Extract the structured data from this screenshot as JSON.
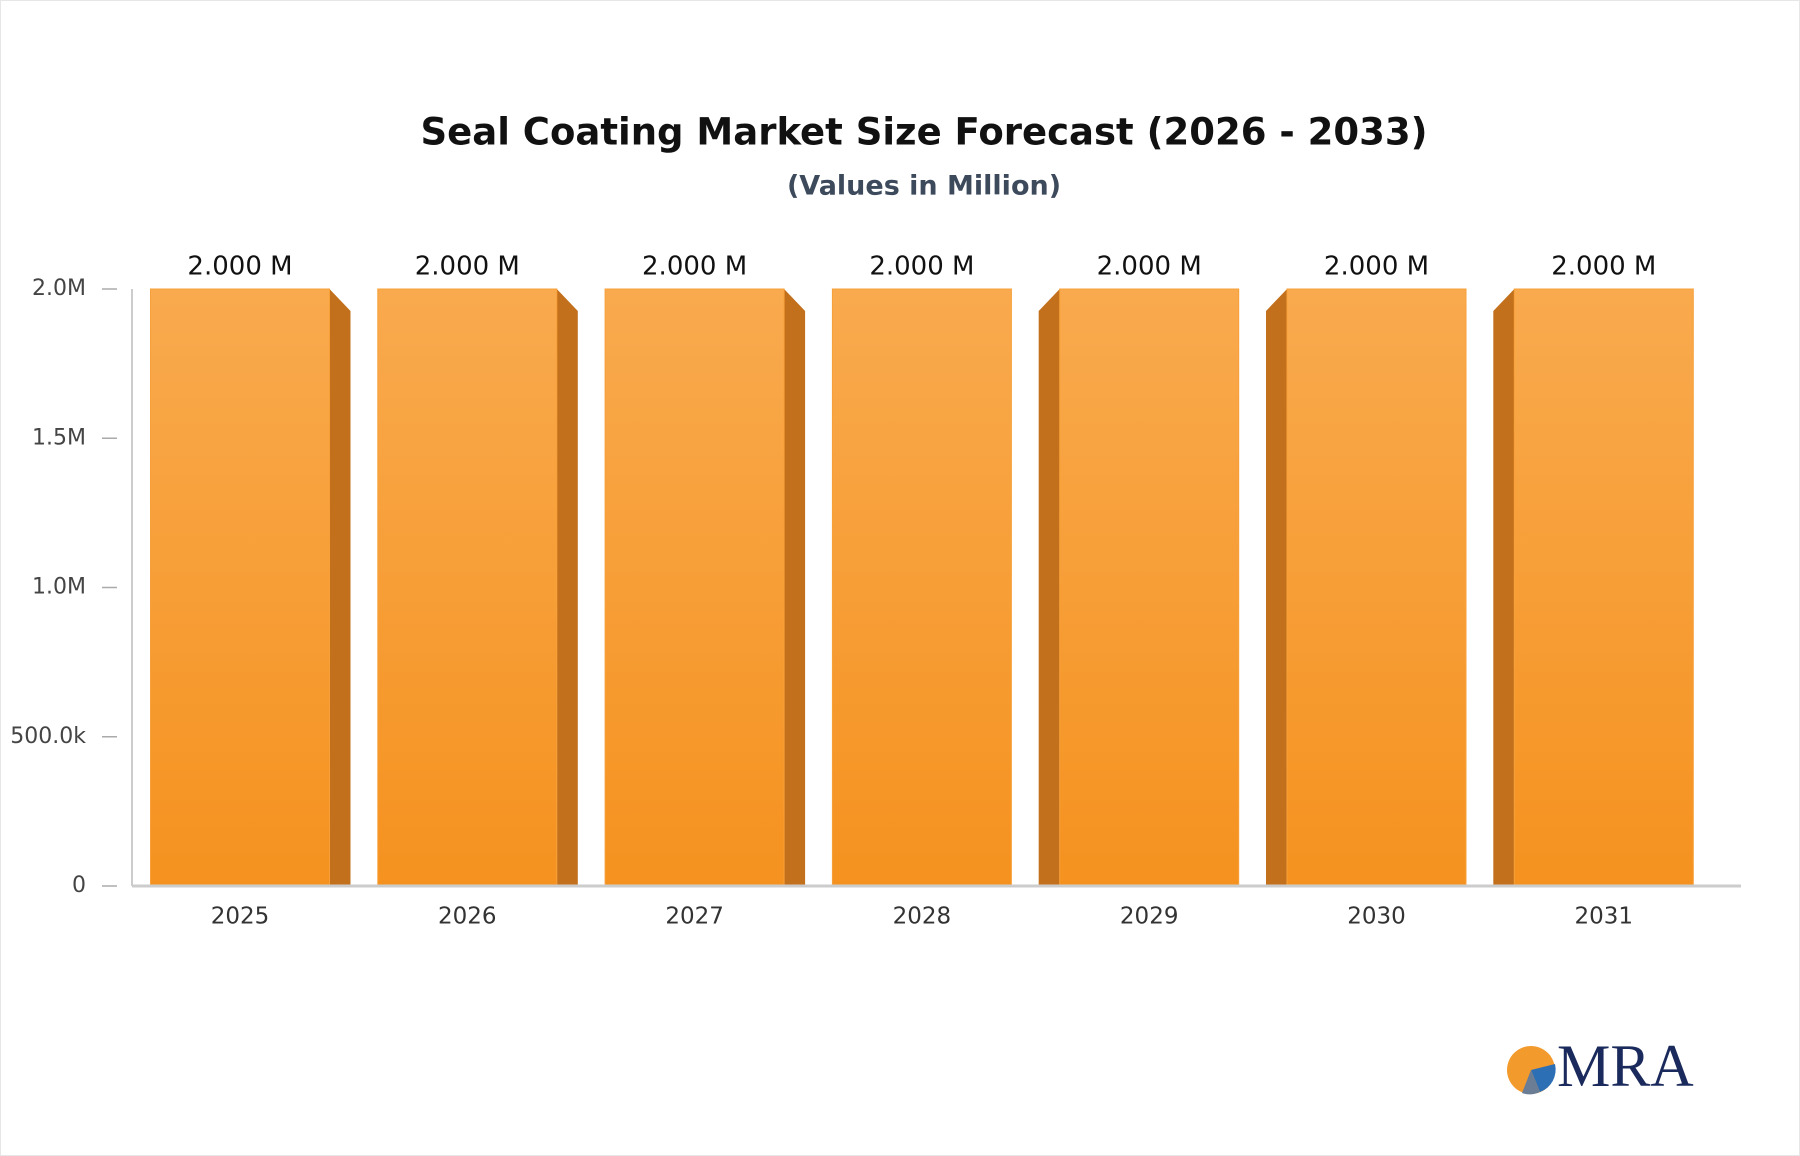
{
  "chart_data": {
    "type": "bar",
    "title": "Seal Coating Market Size Forecast (2026 - 2033)",
    "subtitle": "(Values in Million)",
    "categories": [
      "2025",
      "2026",
      "2027",
      "2028",
      "2029",
      "2030",
      "2031"
    ],
    "values": [
      2000000,
      2000000,
      2000000,
      2000000,
      2000000,
      2000000,
      2000000
    ],
    "value_labels": [
      "2.000 M",
      "2.000 M",
      "2.000 M",
      "2.000 M",
      "2.000 M",
      "2.000 M",
      "2.000 M"
    ],
    "color": "#f7a03a",
    "ylim": [
      0,
      2000000
    ],
    "yticks": [
      0,
      {
        "value": 500000,
        "label": "500.0k"
      },
      {
        "value": 1000000,
        "label": "1.0M"
      },
      {
        "value": 1500000,
        "label": "1.5M"
      },
      {
        "value": 2000000,
        "label": "2.0M"
      }
    ],
    "grid": false
  },
  "logo": "MRA"
}
